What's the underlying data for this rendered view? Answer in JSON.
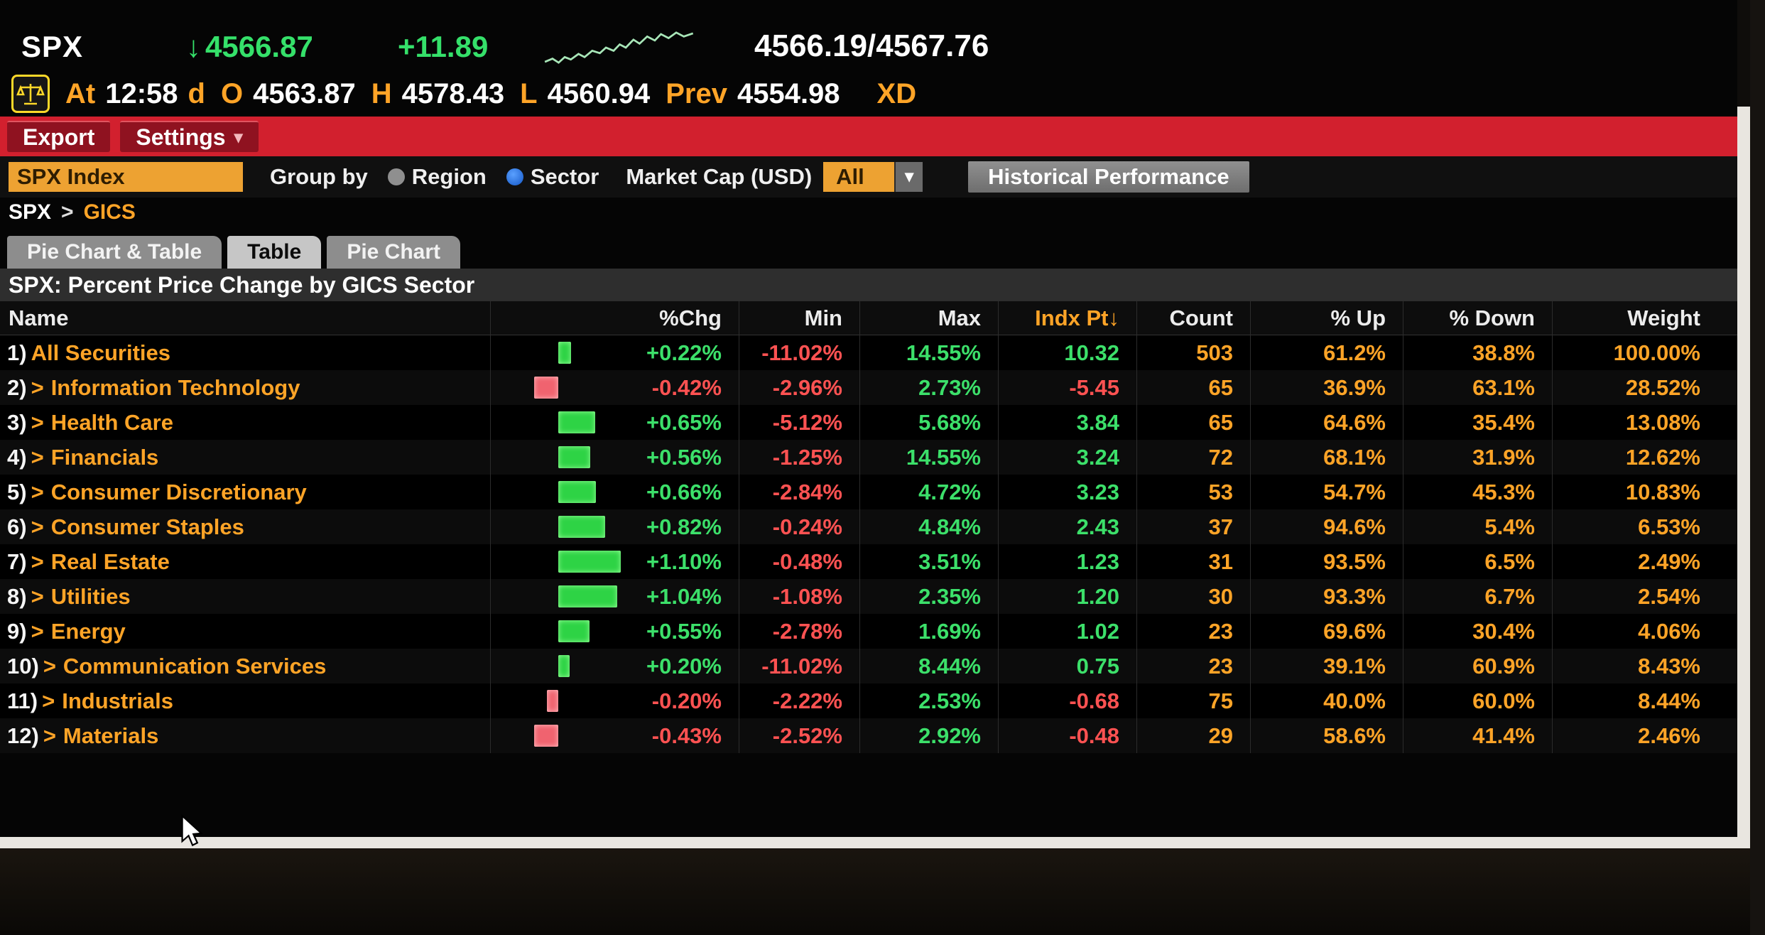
{
  "quote": {
    "ticker": "SPX",
    "tick_arrow": "↓",
    "last": "4566.87",
    "change": "+11.89",
    "bid_ask": "4566.19/4567.76",
    "row2": {
      "at_label": "At",
      "time": "12:58",
      "session": "d",
      "open_label": "O",
      "open": "4563.87",
      "high_label": "H",
      "high": "4578.43",
      "low_label": "L",
      "low": "4560.94",
      "prev_label": "Prev",
      "prev": "4554.98",
      "flag": "XD"
    }
  },
  "menubar": {
    "export_label": "Export",
    "settings_label": "Settings",
    "settings_caret": "▾"
  },
  "controls": {
    "security_value": "SPX Index",
    "group_by_label": "Group by",
    "region_label": "Region",
    "sector_label": "Sector",
    "market_cap_label": "Market Cap (USD)",
    "market_cap_value": "All",
    "dropdown_caret": "▾",
    "historical_label": "Historical Performance"
  },
  "breadcrumb": {
    "root": "SPX",
    "separator": ">",
    "current": "GICS"
  },
  "tabs": [
    {
      "label": "Pie Chart & Table",
      "active": false
    },
    {
      "label": "Table",
      "active": true
    },
    {
      "label": "Pie Chart",
      "active": false
    }
  ],
  "title": "SPX: Percent Price Change by GICS Sector",
  "table": {
    "columns": [
      "Name",
      "%Chg",
      "Min",
      "Max",
      "Indx Pt",
      "Count",
      "% Up",
      "% Down",
      "Weight"
    ],
    "sort_arrow": "↓",
    "rows": [
      {
        "idx": "1)",
        "sub": false,
        "name": "All Securities",
        "chg": "+0.22%",
        "chg_num": 0.22,
        "min": "-11.02%",
        "max": "14.55%",
        "indx_pt": "10.32",
        "count": "503",
        "pct_up": "61.2%",
        "pct_down": "38.8%",
        "weight": "100.00%"
      },
      {
        "idx": "2)",
        "sub": true,
        "name": "Information Technology",
        "chg": "-0.42%",
        "chg_num": -0.42,
        "min": "-2.96%",
        "max": "2.73%",
        "indx_pt": "-5.45",
        "count": "65",
        "pct_up": "36.9%",
        "pct_down": "63.1%",
        "weight": "28.52%"
      },
      {
        "idx": "3)",
        "sub": true,
        "name": "Health Care",
        "chg": "+0.65%",
        "chg_num": 0.65,
        "min": "-5.12%",
        "max": "5.68%",
        "indx_pt": "3.84",
        "count": "65",
        "pct_up": "64.6%",
        "pct_down": "35.4%",
        "weight": "13.08%"
      },
      {
        "idx": "4)",
        "sub": true,
        "name": "Financials",
        "chg": "+0.56%",
        "chg_num": 0.56,
        "min": "-1.25%",
        "max": "14.55%",
        "indx_pt": "3.24",
        "count": "72",
        "pct_up": "68.1%",
        "pct_down": "31.9%",
        "weight": "12.62%"
      },
      {
        "idx": "5)",
        "sub": true,
        "name": "Consumer Discretionary",
        "chg": "+0.66%",
        "chg_num": 0.66,
        "min": "-2.84%",
        "max": "4.72%",
        "indx_pt": "3.23",
        "count": "53",
        "pct_up": "54.7%",
        "pct_down": "45.3%",
        "weight": "10.83%"
      },
      {
        "idx": "6)",
        "sub": true,
        "name": "Consumer Staples",
        "chg": "+0.82%",
        "chg_num": 0.82,
        "min": "-0.24%",
        "max": "4.84%",
        "indx_pt": "2.43",
        "count": "37",
        "pct_up": "94.6%",
        "pct_down": "5.4%",
        "weight": "6.53%"
      },
      {
        "idx": "7)",
        "sub": true,
        "name": "Real Estate",
        "chg": "+1.10%",
        "chg_num": 1.1,
        "min": "-0.48%",
        "max": "3.51%",
        "indx_pt": "1.23",
        "count": "31",
        "pct_up": "93.5%",
        "pct_down": "6.5%",
        "weight": "2.49%"
      },
      {
        "idx": "8)",
        "sub": true,
        "name": "Utilities",
        "chg": "+1.04%",
        "chg_num": 1.04,
        "min": "-1.08%",
        "max": "2.35%",
        "indx_pt": "1.20",
        "count": "30",
        "pct_up": "93.3%",
        "pct_down": "6.7%",
        "weight": "2.54%"
      },
      {
        "idx": "9)",
        "sub": true,
        "name": "Energy",
        "chg": "+0.55%",
        "chg_num": 0.55,
        "min": "-2.78%",
        "max": "1.69%",
        "indx_pt": "1.02",
        "count": "23",
        "pct_up": "69.6%",
        "pct_down": "30.4%",
        "weight": "4.06%"
      },
      {
        "idx": "10)",
        "sub": true,
        "name": "Communication Services",
        "chg": "+0.20%",
        "chg_num": 0.2,
        "min": "-11.02%",
        "max": "8.44%",
        "indx_pt": "0.75",
        "count": "23",
        "pct_up": "39.1%",
        "pct_down": "60.9%",
        "weight": "8.43%"
      },
      {
        "idx": "11)",
        "sub": true,
        "name": "Industrials",
        "chg": "-0.20%",
        "chg_num": -0.2,
        "min": "-2.22%",
        "max": "2.53%",
        "indx_pt": "-0.68",
        "count": "75",
        "pct_up": "40.0%",
        "pct_down": "60.0%",
        "weight": "8.44%"
      },
      {
        "idx": "12)",
        "sub": true,
        "name": "Materials",
        "chg": "-0.43%",
        "chg_num": -0.43,
        "min": "-2.52%",
        "max": "2.92%",
        "indx_pt": "-0.48",
        "count": "29",
        "pct_up": "58.6%",
        "pct_down": "41.4%",
        "weight": "2.46%"
      }
    ]
  },
  "chart_data": {
    "type": "bar",
    "orientation": "horizontal",
    "title": "SPX: Percent Price Change by GICS Sector",
    "categories": [
      "All Securities",
      "Information Technology",
      "Health Care",
      "Financials",
      "Consumer Discretionary",
      "Consumer Staples",
      "Real Estate",
      "Utilities",
      "Energy",
      "Communication Services",
      "Industrials",
      "Materials"
    ],
    "values": [
      0.22,
      -0.42,
      0.65,
      0.56,
      0.66,
      0.82,
      1.1,
      1.04,
      0.55,
      0.2,
      -0.2,
      -0.43
    ],
    "unit": "%",
    "xlim": [
      -0.6,
      1.2
    ],
    "positive_color": "#2ed345",
    "negative_color": "#f0636f"
  },
  "colors": {
    "amber": "#ffa427",
    "green": "#35e06a",
    "red": "#ff5252",
    "menubar_red": "#d2202e",
    "field_amber": "#eda232",
    "radio_blue": "#2277ee",
    "icon_yellow": "#ffd829"
  }
}
